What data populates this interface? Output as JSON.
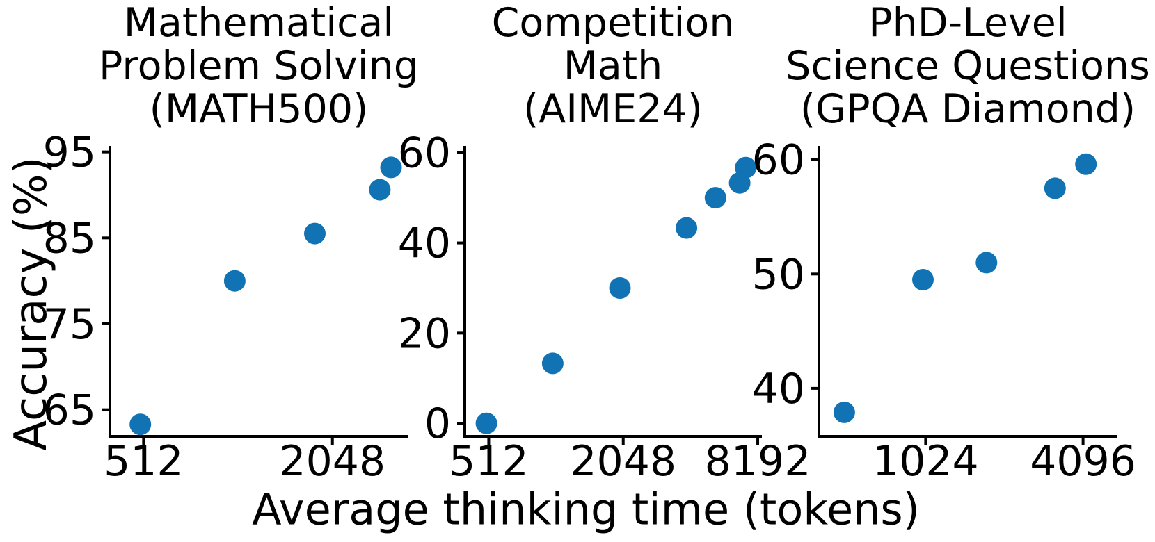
{
  "figure": {
    "xlabel": "Average thinking time (tokens)",
    "ylabel": "Accuracy (%)",
    "dot_color": "#1273b4",
    "axis_color": "#000000",
    "text_color": "#000000"
  },
  "chart_data": [
    {
      "type": "scatter",
      "title": "Mathematical Problem Solving (MATH500)",
      "title_lines": [
        "Mathematical",
        "Problem Solving",
        "(MATH500)"
      ],
      "x_scale": "log2",
      "grid": false,
      "legend": false,
      "xlabel": "Average thinking time (tokens)",
      "ylabel": "Accuracy (%)",
      "xlim": [
        400,
        3560
      ],
      "ylim": [
        61.9,
        95.7
      ],
      "xticks": [
        512,
        2048
      ],
      "yticks": [
        65,
        75,
        85,
        95
      ],
      "points": [
        {
          "x": 500,
          "y": 63.3
        },
        {
          "x": 1000,
          "y": 80.0
        },
        {
          "x": 1800,
          "y": 85.5
        },
        {
          "x": 2900,
          "y": 90.6
        },
        {
          "x": 3150,
          "y": 93.2
        }
      ]
    },
    {
      "type": "scatter",
      "title": "Competition Math (AIME24)",
      "title_lines": [
        "Competition",
        "Math",
        "(AIME24)"
      ],
      "x_scale": "log2",
      "grid": false,
      "legend": false,
      "xlabel": "Average thinking time (tokens)",
      "ylabel": "Accuracy (%)",
      "xlim": [
        400,
        8550
      ],
      "ylim": [
        -2.9,
        61.5
      ],
      "xticks": [
        512,
        2048,
        8192
      ],
      "yticks": [
        0,
        20,
        40,
        60
      ],
      "points": [
        {
          "x": 500,
          "y": 0.0
        },
        {
          "x": 990,
          "y": 13.3
        },
        {
          "x": 1980,
          "y": 30.0
        },
        {
          "x": 3930,
          "y": 43.3
        },
        {
          "x": 5300,
          "y": 50.0
        },
        {
          "x": 6800,
          "y": 53.3
        },
        {
          "x": 7240,
          "y": 56.7
        }
      ]
    },
    {
      "type": "scatter",
      "title": "PhD-Level Science Questions (GPQA Diamond)",
      "title_lines": [
        "PhD-Level",
        "Science Questions",
        "(GPQA Diamond)"
      ],
      "x_scale": "log2",
      "grid": false,
      "legend": false,
      "xlabel": "Average thinking time (tokens)",
      "ylabel": "Accuracy (%)",
      "xlim": [
        400,
        5510
      ],
      "ylim": [
        35.8,
        61.2
      ],
      "xticks": [
        1024,
        4096
      ],
      "yticks": [
        40,
        50,
        60
      ],
      "points": [
        {
          "x": 500,
          "y": 37.9
        },
        {
          "x": 1000,
          "y": 49.5
        },
        {
          "x": 1750,
          "y": 51.0
        },
        {
          "x": 3200,
          "y": 57.5
        },
        {
          "x": 4200,
          "y": 59.6
        }
      ]
    }
  ]
}
